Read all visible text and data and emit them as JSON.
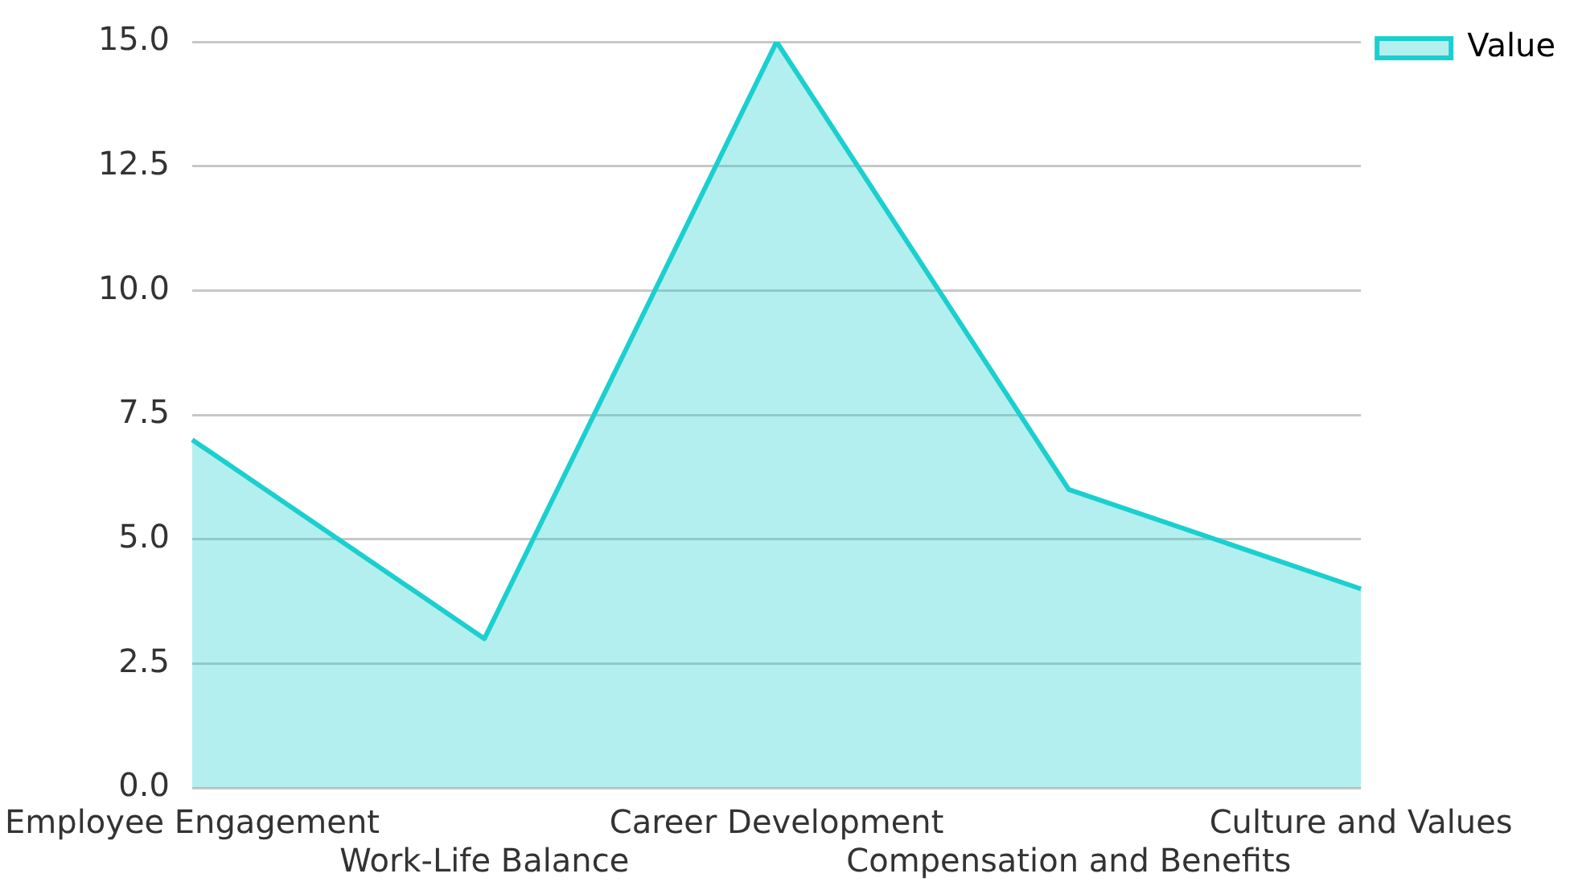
{
  "chart_data": {
    "type": "area",
    "categories": [
      "Employee Engagement",
      "Work-Life Balance",
      "Career Development",
      "Compensation and Benefits",
      "Culture and Values"
    ],
    "series": [
      {
        "name": "Value",
        "color": "#1ccfcf",
        "values": [
          7,
          3,
          15,
          6,
          4
        ]
      }
    ],
    "ylim": [
      0,
      15
    ],
    "yticks": [
      {
        "value": 0,
        "label": "0.0"
      },
      {
        "value": 2.5,
        "label": "2.5"
      },
      {
        "value": 5,
        "label": "5.0"
      },
      {
        "value": 7.5,
        "label": "7.5"
      },
      {
        "value": 10,
        "label": "10.0"
      },
      {
        "value": 12.5,
        "label": "12.5"
      },
      {
        "value": 15,
        "label": "15.0"
      }
    ],
    "grid": "y",
    "legend": "top right",
    "marker": "none",
    "line_style": "solid"
  }
}
